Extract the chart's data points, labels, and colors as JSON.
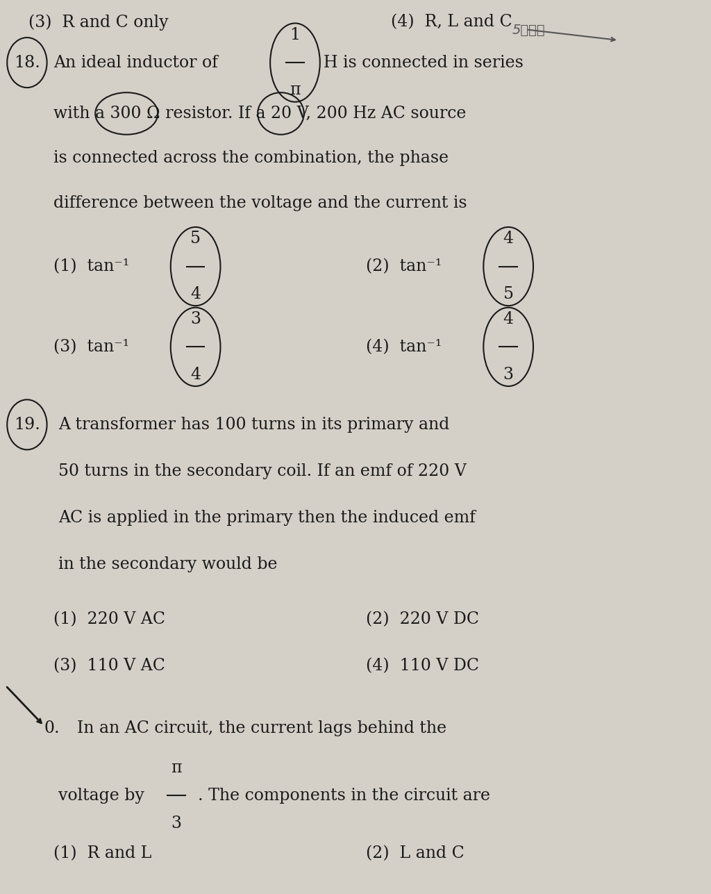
{
  "bg_color": "#d4d0c8",
  "text_color": "#1a1a1a",
  "top_left": "(3)  R and C only",
  "top_right": "(4)  R, L and C",
  "fontsize_main": 17,
  "q18_number": "18.",
  "q18_line1_pre": "An ideal inductor of ",
  "q18_frac_num": "1",
  "q18_frac_den": "π",
  "q18_line1_post": "H is connected in series",
  "q18_line2": "with a 300 Ω resistor. If a 20 V, 200 Hz AC source",
  "q18_line3": "is connected across the combination, the phase",
  "q18_line4": "difference between the voltage and the current is",
  "q18_opt1_pre": "(1)  tan⁻¹",
  "q18_opt1_num": "5",
  "q18_opt1_den": "4",
  "q18_opt2_pre": "(2)  tan⁻¹",
  "q18_opt2_num": "4",
  "q18_opt2_den": "5",
  "q18_opt3_pre": "(3)  tan⁻¹",
  "q18_opt3_num": "3",
  "q18_opt3_den": "4",
  "q18_opt4_pre": "(4)  tan⁻¹",
  "q18_opt4_num": "4",
  "q18_opt4_den": "3",
  "q19_number": "19.",
  "q19_line1": "A transformer has 100 turns in its primary and",
  "q19_line2": "50 turns in the secondary coil. If an emf of 220 V",
  "q19_line3": "AC is applied in the primary then the induced emf",
  "q19_line4": "in the secondary would be",
  "q19_opt1": "(1)  220 V AC",
  "q19_opt2": "(2)  220 V DC",
  "q19_opt3": "(3)  110 V AC",
  "q19_opt4": "(4)  110 V DC",
  "q20_number": "0.",
  "q20_line1": "In an AC circuit, the current lags behind the",
  "q20_line2_pre": "voltage by ",
  "q20_frac_num": "π",
  "q20_frac_den": "3",
  "q20_line2_post": ". The components in the circuit are",
  "q20_opt1": "(1)  R and L",
  "q20_opt2": "(2)  L and C"
}
